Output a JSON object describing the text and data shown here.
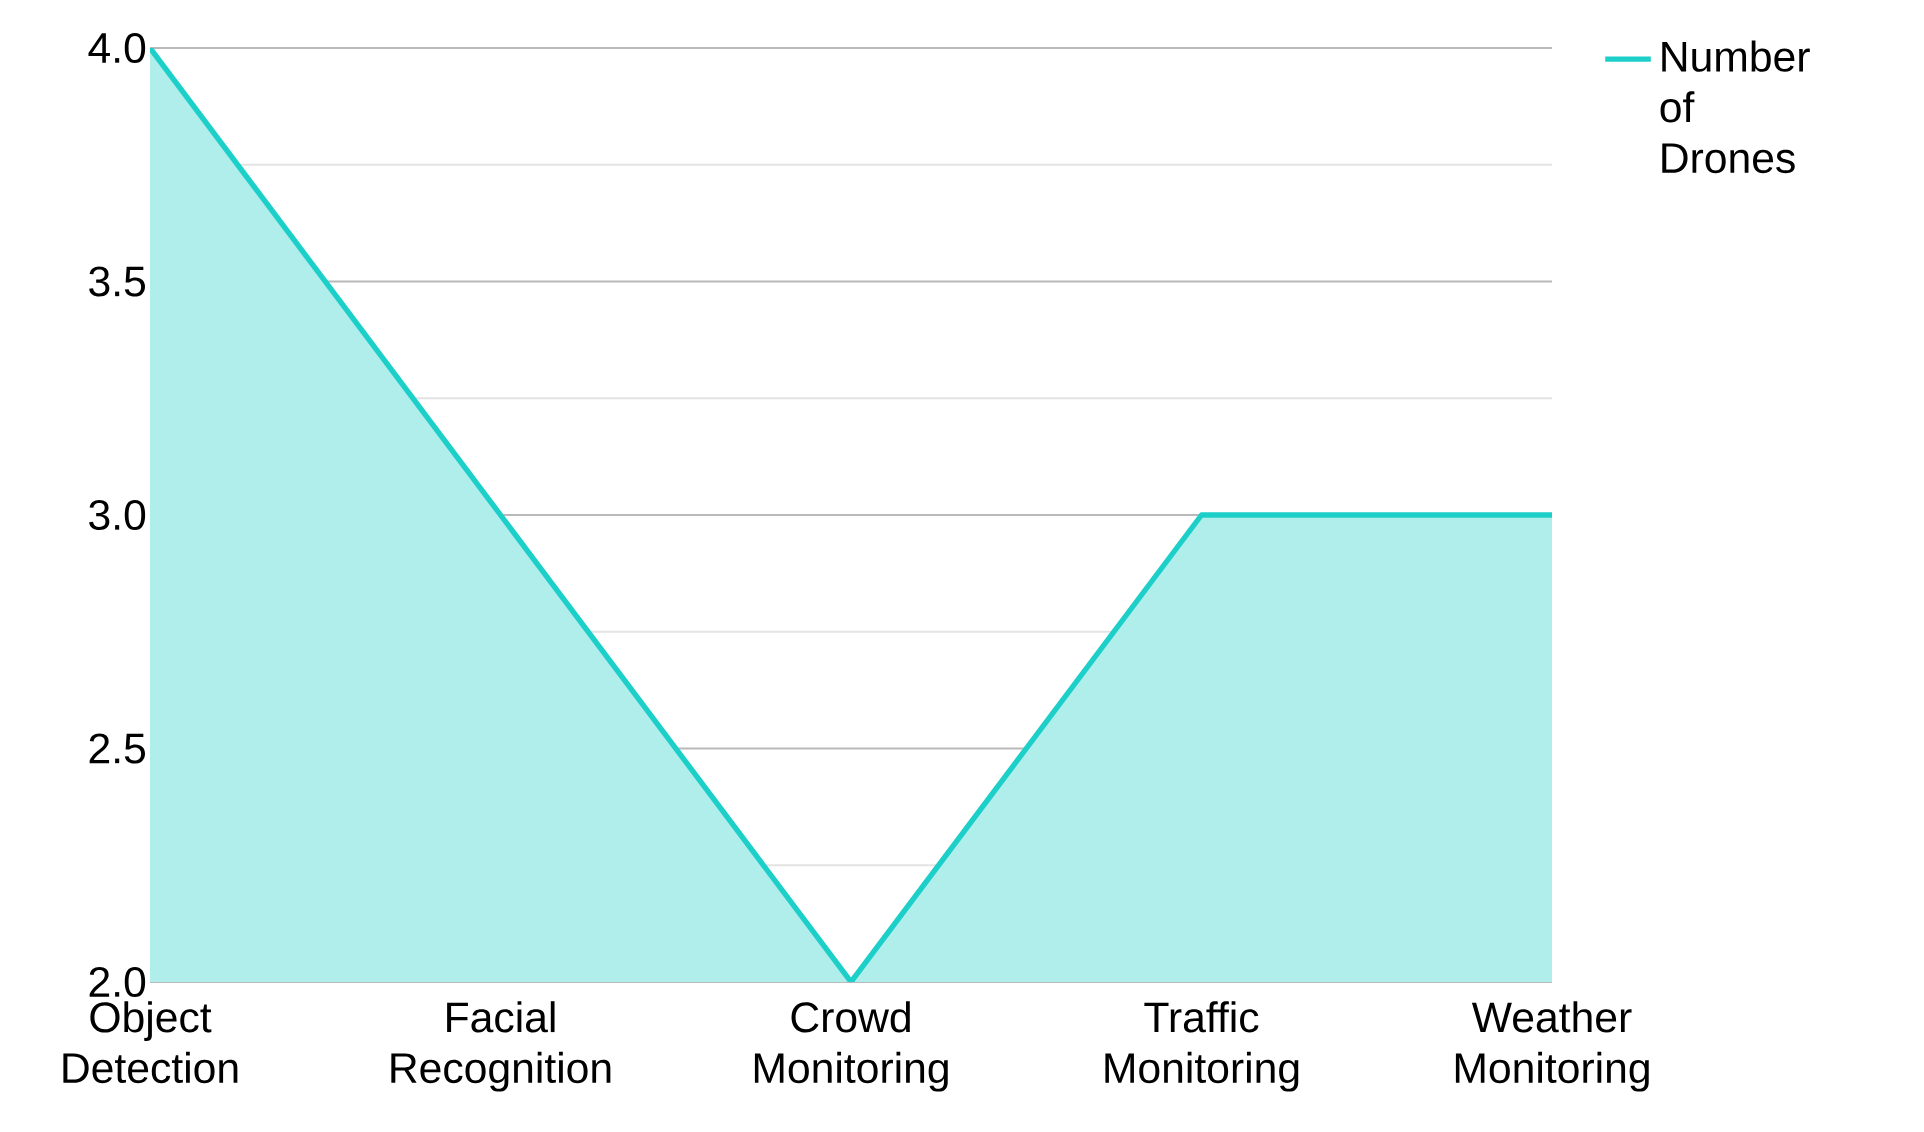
{
  "chart_data": {
    "type": "area",
    "categories": [
      "Object Detection",
      "Facial Recognition",
      "Crowd Monitoring",
      "Traffic Monitoring",
      "Weather Monitoring"
    ],
    "series": [
      {
        "name": "Number of Drones",
        "color": "#1ccfc9",
        "values": [
          4,
          3,
          2,
          3,
          3
        ]
      }
    ],
    "ylim": [
      2,
      4
    ],
    "yticks": [
      {
        "value": 2,
        "label": "2.0"
      },
      {
        "value": 2.5,
        "label": "2.5"
      },
      {
        "value": 3,
        "label": "3.0"
      },
      {
        "value": 3.5,
        "label": "3.5"
      },
      {
        "value": 4,
        "label": "4.0"
      }
    ],
    "grid": "y",
    "legend": "top right"
  }
}
